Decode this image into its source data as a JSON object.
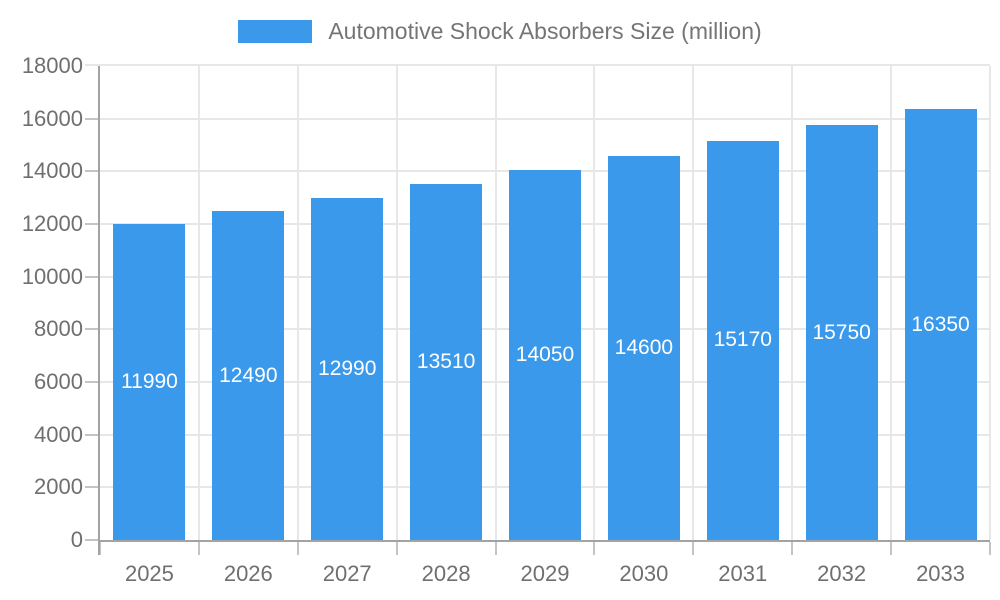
{
  "legend": {
    "label": "Automotive Shock Absorbers Size (million)"
  },
  "colors": {
    "bar": "#3B99EC",
    "axis_line": "#A3A3A3",
    "tick": "#C4C4C4",
    "grid": "#E7E7E7",
    "axis_text": "#6F6F6F",
    "legend_text": "#757575",
    "value_label": "#FFFFFF",
    "background": "#FFFFFF"
  },
  "chart_data": {
    "type": "bar",
    "categories": [
      "2025",
      "2026",
      "2027",
      "2028",
      "2029",
      "2030",
      "2031",
      "2032",
      "2033"
    ],
    "values": [
      11990,
      12490,
      12990,
      13510,
      14050,
      14600,
      15170,
      15750,
      16350
    ],
    "title": "",
    "legend": "Automotive Shock Absorbers Size (million)",
    "xlabel": "",
    "ylabel": "",
    "ylim": [
      0,
      18000
    ],
    "ytick_step": 2000,
    "grid": true,
    "legend_position": "top-center",
    "value_labels": "inside-center-white"
  }
}
